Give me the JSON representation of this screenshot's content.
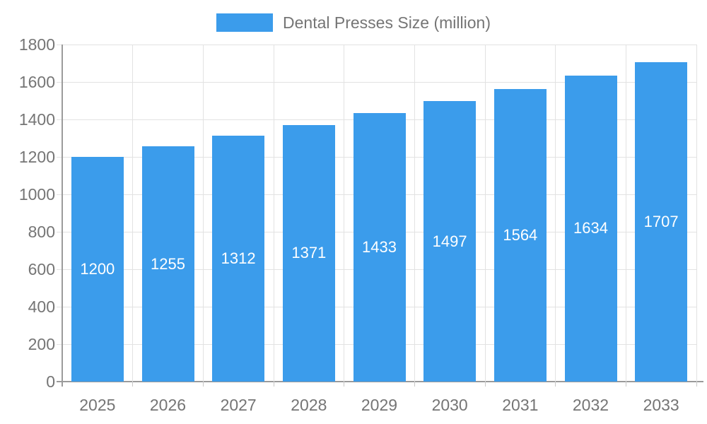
{
  "chart_data": {
    "type": "bar",
    "title": "Dental Presses Size (million)",
    "legend": {
      "label": "Dental Presses Size (million)",
      "position": "top-center"
    },
    "categories": [
      "2025",
      "2026",
      "2027",
      "2028",
      "2029",
      "2030",
      "2031",
      "2032",
      "2033"
    ],
    "series": [
      {
        "name": "Dental Presses Size (million)",
        "values": [
          1200,
          1255,
          1312,
          1371,
          1433,
          1497,
          1564,
          1634,
          1707
        ]
      }
    ],
    "xlabel": "",
    "ylabel": "",
    "ylim": [
      0,
      1800
    ],
    "yticks": [
      0,
      200,
      400,
      600,
      800,
      1000,
      1200,
      1400,
      1600,
      1800
    ],
    "grid": true,
    "bar_value_labels": "inside-center",
    "colors": {
      "bar": "#3b9ceb",
      "grid": "#e2e2e2",
      "axis": "#9b9b9b",
      "text": "#757575",
      "bar_label": "#ffffff",
      "background": "#ffffff"
    }
  }
}
